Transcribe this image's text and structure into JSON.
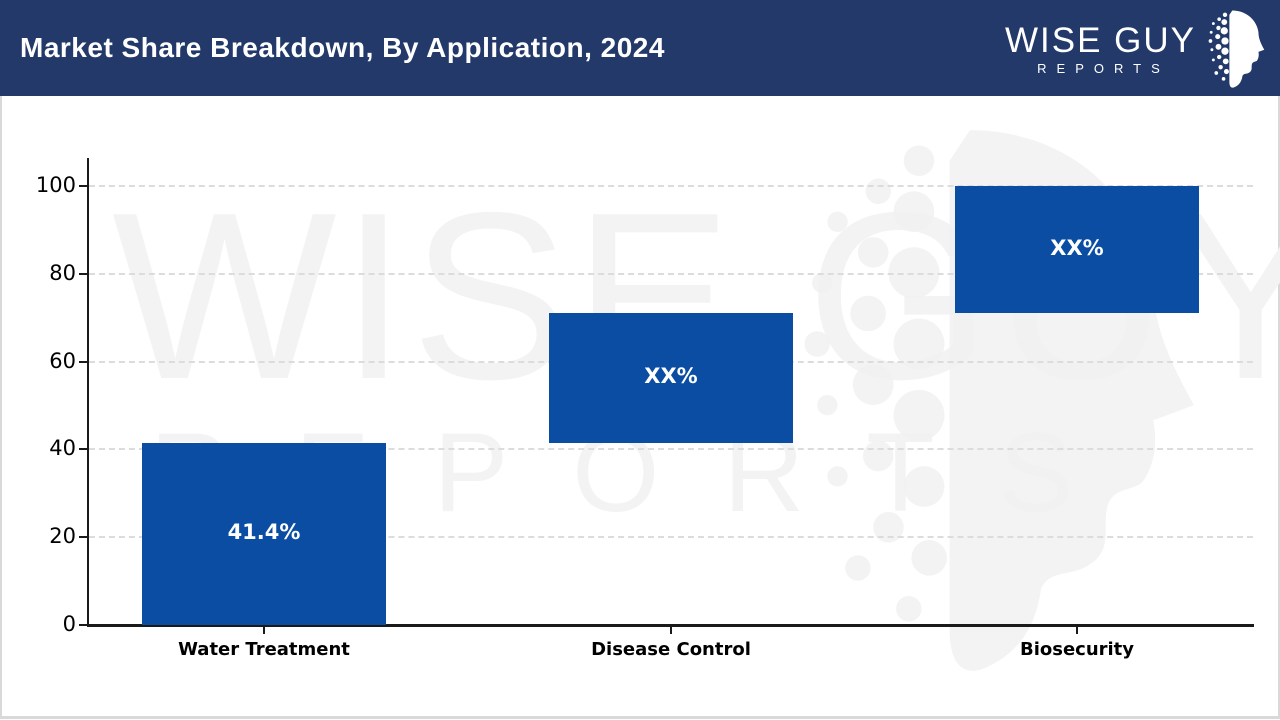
{
  "header": {
    "title": "Market Share Breakdown, By Application, 2024",
    "logo": {
      "wordmark": "WISE GUY",
      "sub": "REPORTS"
    }
  },
  "watermark": {
    "line1": "WISE GUY",
    "line2": "REPORTS"
  },
  "chart_data": {
    "type": "bar",
    "subtype": "stacked-breakdown-waterfall",
    "title": "Market Share Breakdown, By Application, 2024",
    "xlabel": "",
    "ylabel": "",
    "categories": [
      "Water Treatment",
      "Disease Control",
      "Biosecurity"
    ],
    "segments": [
      {
        "category": "Water Treatment",
        "start": 0,
        "end": 41.4,
        "label": "41.4%"
      },
      {
        "category": "Disease Control",
        "start": 41.4,
        "end": 71.0,
        "label": "XX%"
      },
      {
        "category": "Biosecurity",
        "start": 71.0,
        "end": 100.0,
        "label": "XX%"
      }
    ],
    "yticks": [
      0,
      20,
      40,
      60,
      80,
      100
    ],
    "ylim": [
      0,
      106
    ],
    "grid": {
      "horizontal": true,
      "style": "dashed"
    },
    "legend": null,
    "bar_color": "#0B4DA2",
    "bar_label_color": "#ffffff"
  },
  "colors": {
    "header_bg": "#22396A",
    "bar": "#0B4DA2",
    "grid": "#dcdcdc",
    "axis": "#1a1a1a",
    "watermark": "#f3f3f3",
    "frame_border": "#d9d9d9"
  }
}
